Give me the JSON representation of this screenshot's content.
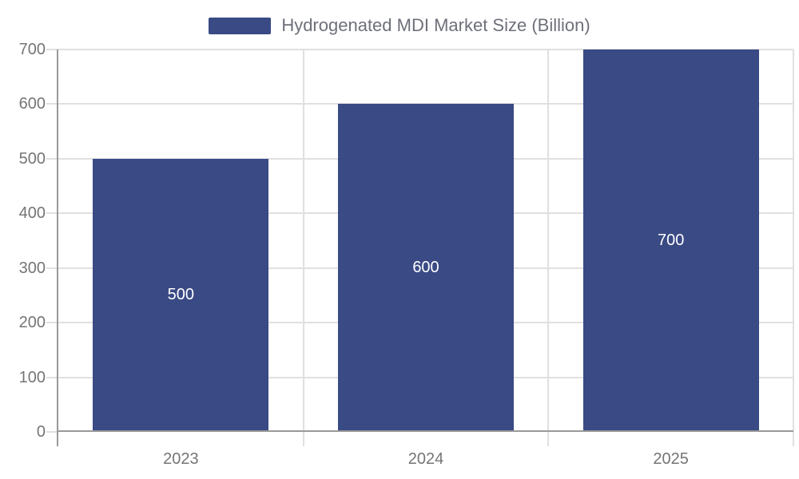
{
  "chart_data": {
    "type": "bar",
    "title": "Hydrogenated MDI Market Size (Billion)",
    "categories": [
      "2023",
      "2024",
      "2025"
    ],
    "values": [
      500,
      600,
      700
    ],
    "xlabel": "",
    "ylabel": "",
    "ylim": [
      0,
      700
    ],
    "yticks": [
      0,
      100,
      200,
      300,
      400,
      500,
      600,
      700
    ],
    "grid": true,
    "legend_position": "top-center",
    "bar_color": "#3A4A85",
    "value_label_color": "#FFFFFF",
    "axis_color": "#999999",
    "gridline_color": "#E0E0E0",
    "tick_label_color": "#757575",
    "legend_text_color": "#6E7079"
  }
}
